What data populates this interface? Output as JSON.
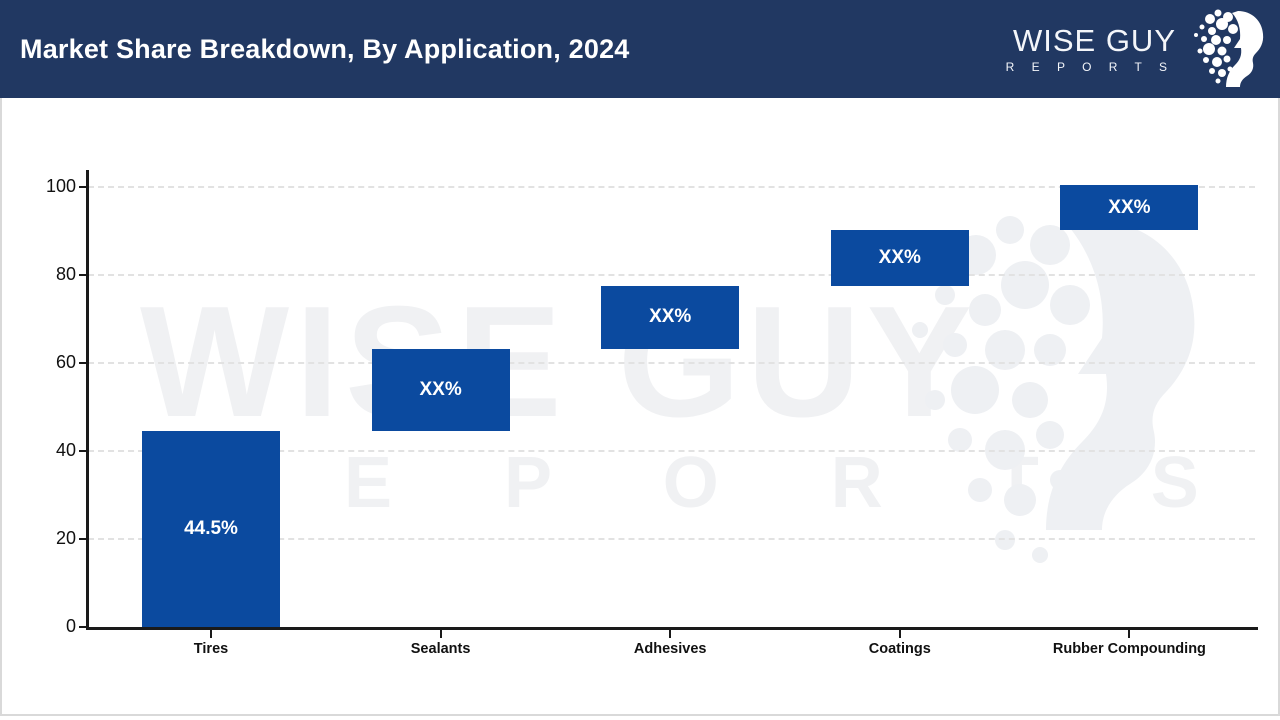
{
  "header": {
    "logo": {
      "line1": "WISE GUY",
      "line2": "R E P O R T S"
    },
    "bg_color": "#213862"
  },
  "watermark": {
    "line1": "WISE GUY",
    "line2": "R E P O R T S"
  },
  "chart_data": {
    "type": "bar",
    "subtype": "waterfall",
    "title": "Market Share Breakdown, By Application, 2024",
    "categories": [
      "Tires",
      "Sealants",
      "Adhesives",
      "Coatings",
      "Rubber Compounding"
    ],
    "segments": [
      {
        "category": "Tires",
        "label": "44.5%",
        "start": 0,
        "end": 44.5
      },
      {
        "category": "Sealants",
        "label": "XX%",
        "start": 44.5,
        "end": 63.2
      },
      {
        "category": "Adhesives",
        "label": "XX%",
        "start": 63.2,
        "end": 77.5
      },
      {
        "category": "Coatings",
        "label": "XX%",
        "start": 77.5,
        "end": 90.2
      },
      {
        "category": "Rubber Compounding",
        "label": "XX%",
        "start": 90.2,
        "end": 100.4
      }
    ],
    "yticks": [
      0,
      20,
      40,
      60,
      80,
      100
    ],
    "ylim": [
      0,
      104
    ],
    "xlabel": "",
    "ylabel": "",
    "grid": "horizontal-dashed",
    "legend": "none",
    "bar_color": "#0b4a9f",
    "value_label_color": "#ffffff",
    "axis_color": "#1a1a1a"
  }
}
